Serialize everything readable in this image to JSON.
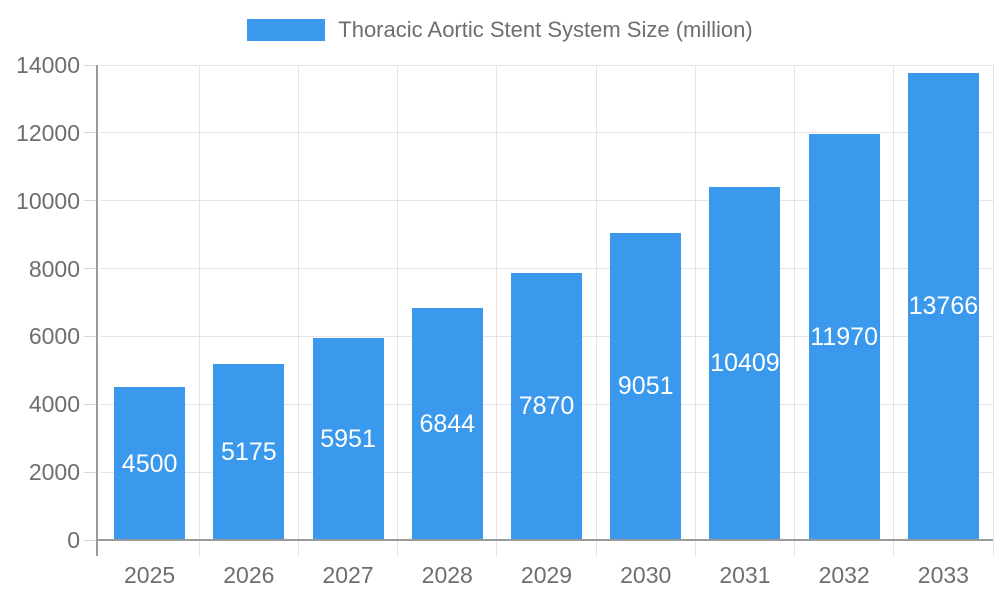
{
  "legend": {
    "label": "Thoracic Aortic Stent System Size (million)"
  },
  "chart_data": {
    "type": "bar",
    "title": "Thoracic Aortic Stent System Size (million)",
    "xlabel": "",
    "ylabel": "",
    "categories": [
      "2025",
      "2026",
      "2027",
      "2028",
      "2029",
      "2030",
      "2031",
      "2032",
      "2033"
    ],
    "values": [
      4500,
      5175,
      5951,
      6844,
      7870,
      9051,
      10409,
      11970,
      13766
    ],
    "ylim": [
      0,
      14000
    ],
    "yticks": [
      0,
      2000,
      4000,
      6000,
      8000,
      10000,
      12000,
      14000
    ],
    "grid": true,
    "legend_position": "top",
    "value_label_position": "inside-center",
    "colors": {
      "bar": "#3A99EC",
      "bar_label": "#FFFFFF",
      "axis_text": "#6E6E6E",
      "grid": "#E4E4E4",
      "tick": "#D9D9D9",
      "axis_line": "#9A9A9A",
      "background": "#FFFFFF"
    }
  }
}
